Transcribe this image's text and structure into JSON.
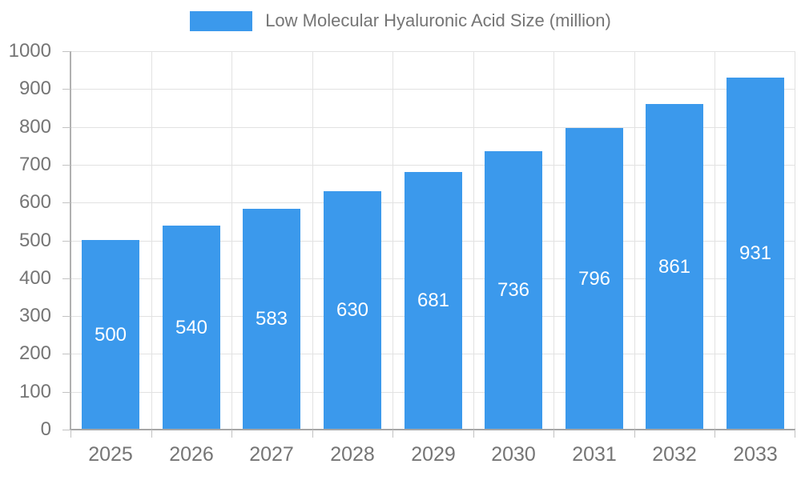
{
  "legend": {
    "label": "Low Molecular Hyaluronic Acid Size (million)"
  },
  "chart_data": {
    "type": "bar",
    "title": "Low Molecular Hyaluronic Acid Size (million)",
    "series_name": "Low Molecular Hyaluronic Acid Size (million)",
    "categories": [
      "2025",
      "2026",
      "2027",
      "2028",
      "2029",
      "2030",
      "2031",
      "2032",
      "2033"
    ],
    "values": [
      500,
      540,
      583,
      630,
      681,
      736,
      796,
      861,
      931
    ],
    "xlabel": "",
    "ylabel": "",
    "ylim": [
      0,
      1000
    ],
    "ytick_step": 100,
    "yticks": [
      0,
      100,
      200,
      300,
      400,
      500,
      600,
      700,
      800,
      900,
      1000
    ],
    "grid": true,
    "legend_position": "top-center",
    "bar_color": "#3B99EC",
    "value_label_color": "#FFFFFF",
    "value_label_position": "inside-center",
    "axis_text_color": "#757575",
    "grid_color": "#E2E2E2",
    "axis_line_color": "#A6A6A6"
  }
}
